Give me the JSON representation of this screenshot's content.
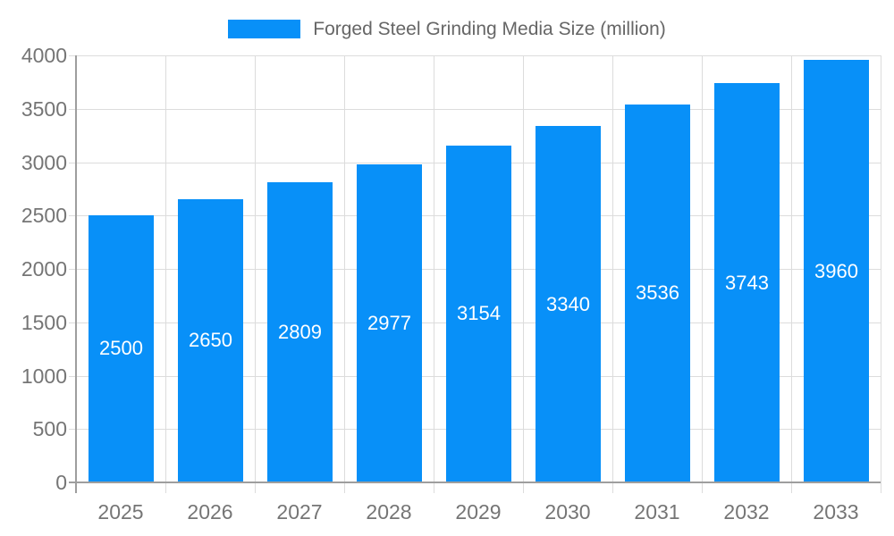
{
  "chart_data": {
    "type": "bar",
    "legend": "Forged Steel Grinding Media Size (million)",
    "legend_position": "top",
    "categories": [
      "2025",
      "2026",
      "2027",
      "2028",
      "2029",
      "2030",
      "2031",
      "2032",
      "2033"
    ],
    "values": [
      2500,
      2650,
      2809,
      2977,
      3154,
      3340,
      3536,
      3743,
      3960
    ],
    "xlabel": "",
    "ylabel": "",
    "ylim": [
      0,
      4000
    ],
    "yticks": [
      0,
      500,
      1000,
      1500,
      2000,
      2500,
      3000,
      3500,
      4000
    ],
    "grid": true,
    "bar_labels_inside": true,
    "colors": {
      "bar": "#0890F8",
      "grid": "#DCDCDC",
      "axis": "#9E9E9E",
      "tick_label": "#757575",
      "bar_label": "#FFFFFF",
      "legend_text": "#666666",
      "background": "#FFFFFF"
    }
  }
}
